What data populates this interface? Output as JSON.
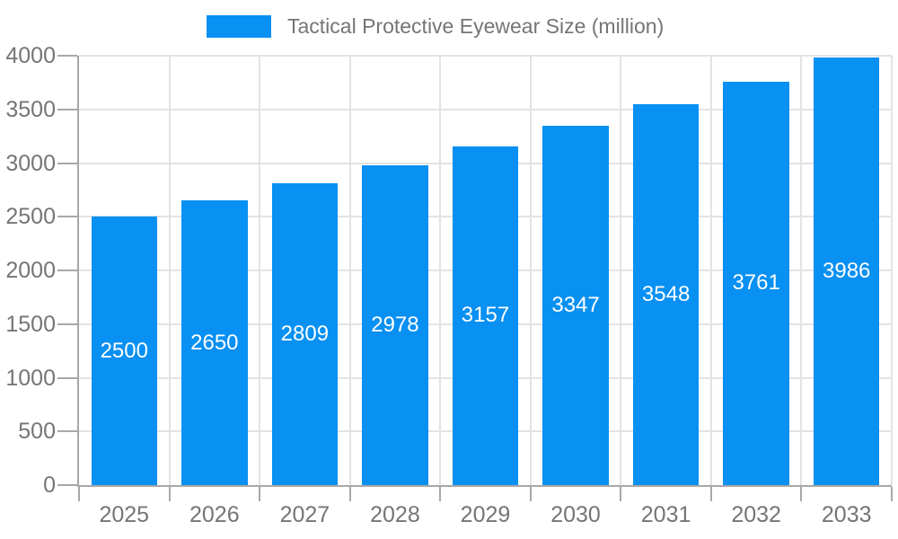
{
  "chart_data": {
    "type": "bar",
    "title": "Tactical Protective Eyewear Size (million)",
    "categories": [
      "2025",
      "2026",
      "2027",
      "2028",
      "2029",
      "2030",
      "2031",
      "2032",
      "2033"
    ],
    "values": [
      2500,
      2650,
      2809,
      2978,
      3157,
      3347,
      3548,
      3761,
      3986
    ],
    "xlabel": "",
    "ylabel": "",
    "ylim": [
      0,
      4000
    ],
    "yticks": [
      0,
      500,
      1000,
      1500,
      2000,
      2500,
      3000,
      3500,
      4000
    ],
    "grid": true,
    "legend_position": "top",
    "value_labels": "inside-center",
    "colors": {
      "bar": "#0890F2",
      "grid": "#E3E3E3",
      "axis": "#A8A8A8",
      "text": "#757575",
      "bar_label": "#FFFFFF",
      "background": "#FFFFFF"
    }
  }
}
